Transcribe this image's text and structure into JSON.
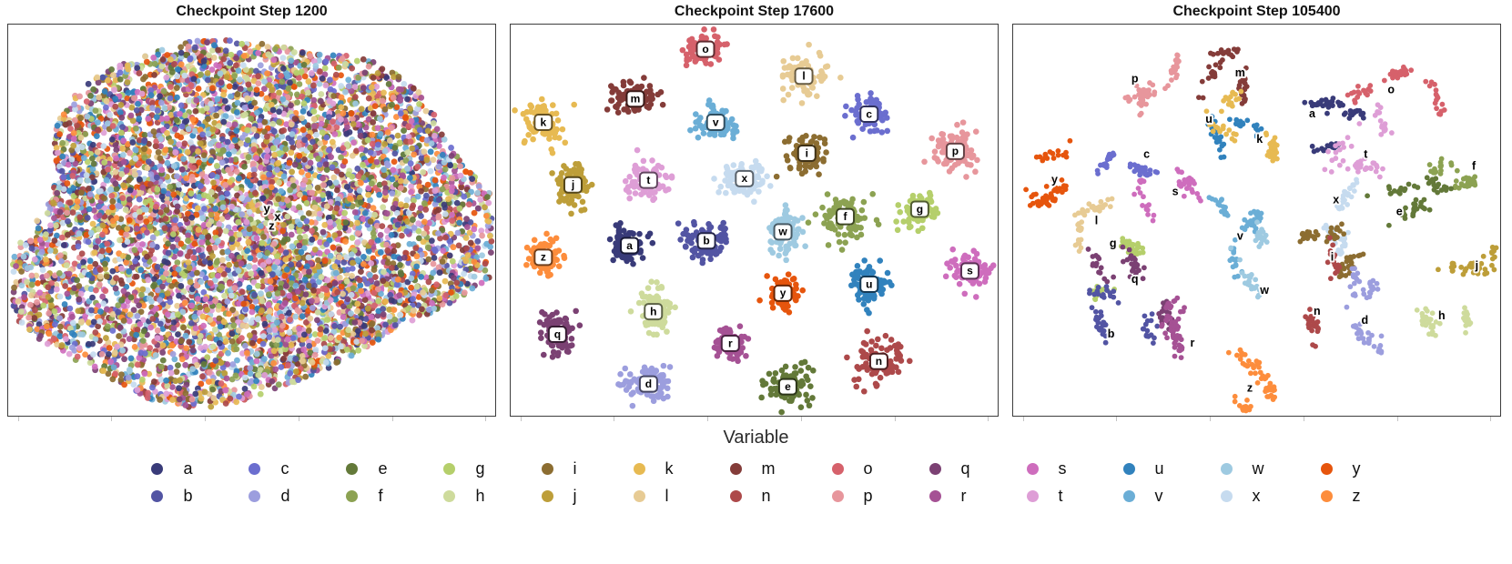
{
  "chart_data": [
    {
      "type": "scatter",
      "title": "Checkpoint Step 1200",
      "layout": "single large blob, all 26 variables intermixed, no separation",
      "blob": {
        "cx": 0.49,
        "cy": 0.5,
        "rx": 0.47,
        "ry": 0.47,
        "n_points": 7000,
        "point_radius": 3.4
      },
      "annotations": [
        {
          "label": "y",
          "x": 0.531,
          "y": 0.472
        },
        {
          "label": "x",
          "x": 0.553,
          "y": 0.493
        },
        {
          "label": "z",
          "x": 0.541,
          "y": 0.516
        }
      ]
    },
    {
      "type": "scatter",
      "title": "Checkpoint Step 17600",
      "layout": "26 well-separated round clusters, one per variable, boxed letter labels",
      "clusters": [
        {
          "label": "o",
          "x": 0.4,
          "y": 0.063
        },
        {
          "label": "l",
          "x": 0.602,
          "y": 0.132
        },
        {
          "label": "m",
          "x": 0.256,
          "y": 0.19
        },
        {
          "label": "k",
          "x": 0.067,
          "y": 0.25
        },
        {
          "label": "v",
          "x": 0.421,
          "y": 0.25
        },
        {
          "label": "c",
          "x": 0.736,
          "y": 0.229
        },
        {
          "label": "i",
          "x": 0.608,
          "y": 0.329
        },
        {
          "label": "p",
          "x": 0.913,
          "y": 0.324
        },
        {
          "label": "j",
          "x": 0.128,
          "y": 0.41
        },
        {
          "label": "t",
          "x": 0.283,
          "y": 0.398
        },
        {
          "label": "x",
          "x": 0.48,
          "y": 0.394
        },
        {
          "label": "f",
          "x": 0.687,
          "y": 0.491
        },
        {
          "label": "g",
          "x": 0.84,
          "y": 0.472
        },
        {
          "label": "z",
          "x": 0.067,
          "y": 0.595
        },
        {
          "label": "a",
          "x": 0.244,
          "y": 0.565
        },
        {
          "label": "b",
          "x": 0.402,
          "y": 0.553
        },
        {
          "label": "w",
          "x": 0.559,
          "y": 0.53
        },
        {
          "label": "s",
          "x": 0.943,
          "y": 0.63
        },
        {
          "label": "u",
          "x": 0.736,
          "y": 0.664
        },
        {
          "label": "y",
          "x": 0.559,
          "y": 0.687
        },
        {
          "label": "h",
          "x": 0.293,
          "y": 0.734
        },
        {
          "label": "q",
          "x": 0.096,
          "y": 0.792
        },
        {
          "label": "r",
          "x": 0.451,
          "y": 0.815
        },
        {
          "label": "n",
          "x": 0.756,
          "y": 0.861
        },
        {
          "label": "d",
          "x": 0.283,
          "y": 0.919
        },
        {
          "label": "e",
          "x": 0.569,
          "y": 0.926
        }
      ]
    },
    {
      "type": "scatter",
      "title": "Checkpoint Step 105400",
      "layout": "26 tight fragmented elongated clusters, plain bold letter labels",
      "clusters": [
        {
          "label": "p",
          "x": 0.25,
          "y": 0.14
        },
        {
          "label": "m",
          "x": 0.466,
          "y": 0.125
        },
        {
          "label": "o",
          "x": 0.776,
          "y": 0.167
        },
        {
          "label": "a",
          "x": 0.614,
          "y": 0.229
        },
        {
          "label": "u",
          "x": 0.402,
          "y": 0.243
        },
        {
          "label": "c",
          "x": 0.274,
          "y": 0.333
        },
        {
          "label": "k",
          "x": 0.506,
          "y": 0.294
        },
        {
          "label": "t",
          "x": 0.724,
          "y": 0.333
        },
        {
          "label": "y",
          "x": 0.085,
          "y": 0.398
        },
        {
          "label": "f",
          "x": 0.946,
          "y": 0.363
        },
        {
          "label": "s",
          "x": 0.333,
          "y": 0.428
        },
        {
          "label": "x",
          "x": 0.663,
          "y": 0.449
        },
        {
          "label": "e",
          "x": 0.793,
          "y": 0.479
        },
        {
          "label": "l",
          "x": 0.171,
          "y": 0.502
        },
        {
          "label": "g",
          "x": 0.205,
          "y": 0.56
        },
        {
          "label": "v",
          "x": 0.466,
          "y": 0.542
        },
        {
          "label": "i",
          "x": 0.655,
          "y": 0.595
        },
        {
          "label": "j",
          "x": 0.952,
          "y": 0.618
        },
        {
          "label": "q",
          "x": 0.25,
          "y": 0.653
        },
        {
          "label": "w",
          "x": 0.516,
          "y": 0.68
        },
        {
          "label": "n",
          "x": 0.624,
          "y": 0.734
        },
        {
          "label": "d",
          "x": 0.722,
          "y": 0.757
        },
        {
          "label": "h",
          "x": 0.88,
          "y": 0.745
        },
        {
          "label": "b",
          "x": 0.201,
          "y": 0.792
        },
        {
          "label": "r",
          "x": 0.368,
          "y": 0.815
        },
        {
          "label": "z",
          "x": 0.486,
          "y": 0.93
        }
      ]
    }
  ],
  "legend": {
    "title": "Variable",
    "entries": [
      {
        "label": "a",
        "color": "#393b79"
      },
      {
        "label": "b",
        "color": "#5254a3"
      },
      {
        "label": "c",
        "color": "#6b6ecf"
      },
      {
        "label": "d",
        "color": "#9c9ede"
      },
      {
        "label": "e",
        "color": "#637939"
      },
      {
        "label": "f",
        "color": "#8ca252"
      },
      {
        "label": "g",
        "color": "#b5cf6b"
      },
      {
        "label": "h",
        "color": "#cedb9c"
      },
      {
        "label": "i",
        "color": "#8c6d31"
      },
      {
        "label": "j",
        "color": "#bd9e39"
      },
      {
        "label": "k",
        "color": "#e7ba52"
      },
      {
        "label": "l",
        "color": "#e7cb94"
      },
      {
        "label": "m",
        "color": "#843c39"
      },
      {
        "label": "n",
        "color": "#ad494a"
      },
      {
        "label": "o",
        "color": "#d6616b"
      },
      {
        "label": "p",
        "color": "#e7969c"
      },
      {
        "label": "q",
        "color": "#7b4173"
      },
      {
        "label": "r",
        "color": "#a55194"
      },
      {
        "label": "s",
        "color": "#ce6dbd"
      },
      {
        "label": "t",
        "color": "#de9ed6"
      },
      {
        "label": "u",
        "color": "#3182bd"
      },
      {
        "label": "v",
        "color": "#6baed6"
      },
      {
        "label": "w",
        "color": "#9ecae1"
      },
      {
        "label": "x",
        "color": "#c6dbef"
      },
      {
        "label": "y",
        "color": "#e6550d"
      },
      {
        "label": "z",
        "color": "#fd8d3c"
      }
    ]
  }
}
